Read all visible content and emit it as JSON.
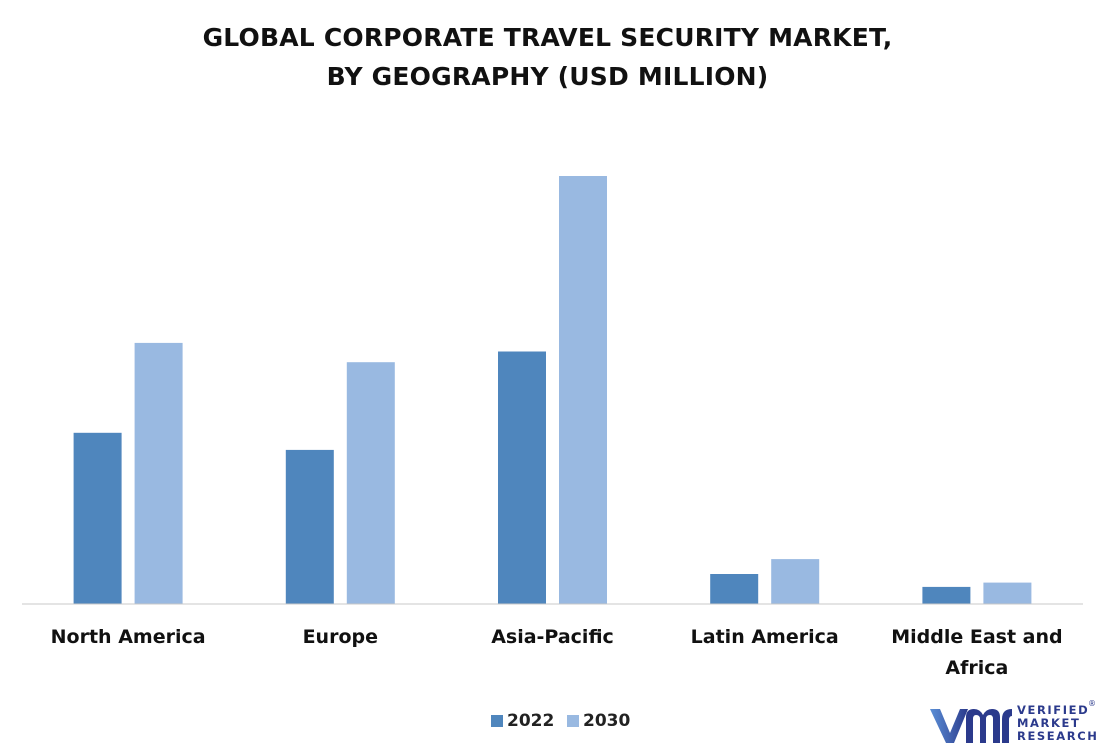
{
  "chart_data": {
    "type": "bar",
    "title_lines": [
      "GLOBAL CORPORATE TRAVEL SECURITY MARKET,",
      "BY GEOGRAPHY (USD MILLION)"
    ],
    "categories": [
      [
        "North America"
      ],
      [
        "Europe"
      ],
      [
        "Asia-Pacific"
      ],
      [
        "Latin America"
      ],
      [
        "Middle East and",
        "Africa"
      ]
    ],
    "series": [
      {
        "name": "2022",
        "color": "#4f86bd",
        "values": [
          40,
          36,
          59,
          7,
          4
        ]
      },
      {
        "name": "2030",
        "color": "#99b9e1",
        "values": [
          61,
          56.5,
          100,
          10.5,
          5
        ]
      }
    ],
    "ylim": [
      0,
      100
    ],
    "grid": false,
    "legend_position": "bottom"
  },
  "logo": {
    "text_lines": [
      "VERIFIED",
      "MARKET",
      "RESEARCH"
    ],
    "registered_mark": "®",
    "color": "#2b3a8c"
  }
}
